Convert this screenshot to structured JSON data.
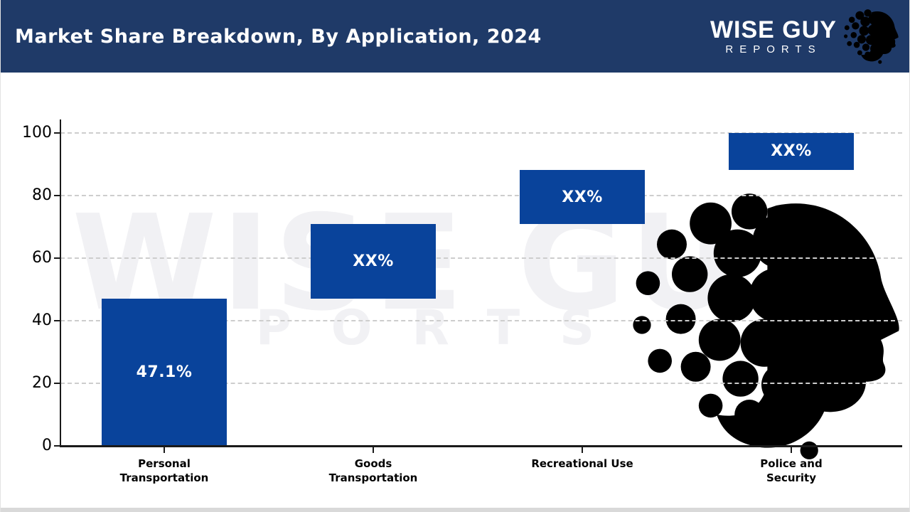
{
  "header": {
    "title": "Market Share Breakdown, By Application, 2024",
    "logo": {
      "line1": "WISE GUY",
      "line2": "REPORTS"
    }
  },
  "watermark": {
    "line1": "WISE GUY",
    "line2": "REPORTS"
  },
  "colors": {
    "header_bg": "#1f3a68",
    "bar": "#09439b",
    "gridline": "#cdcdcd",
    "axis": "#1a1a1a",
    "watermark": "#f1f1f4",
    "bottom_strip": "#d9d9d9"
  },
  "chart_data": {
    "type": "bar",
    "subtype": "waterfall",
    "title": "Market Share Breakdown, By Application, 2024",
    "categories": [
      "Personal Transportation",
      "Goods Transportation",
      "Recreational Use",
      "Police and Security"
    ],
    "categories_lines": [
      [
        "Personal",
        "Transportation"
      ],
      [
        "Goods",
        "Transportation"
      ],
      [
        "Recreational Use"
      ],
      [
        "Police and",
        "Security"
      ]
    ],
    "segments": [
      {
        "category": "Personal Transportation",
        "start": 0,
        "end": 47.1,
        "label": "47.1%"
      },
      {
        "category": "Goods Transportation",
        "start": 47.1,
        "end": 70.8,
        "label": "XX%"
      },
      {
        "category": "Recreational Use",
        "start": 70.8,
        "end": 88.2,
        "label": "XX%"
      },
      {
        "category": "Police and Security",
        "start": 88.2,
        "end": 100,
        "label": "XX%"
      }
    ],
    "y_ticks": [
      0,
      20,
      40,
      60,
      80,
      100
    ],
    "ylim": [
      0,
      100
    ],
    "xlabel": "",
    "ylabel": "",
    "grid": "horizontal-dashed",
    "legend": "none",
    "bar_color": "#09439b",
    "bar_label_color": "#ffffff"
  }
}
